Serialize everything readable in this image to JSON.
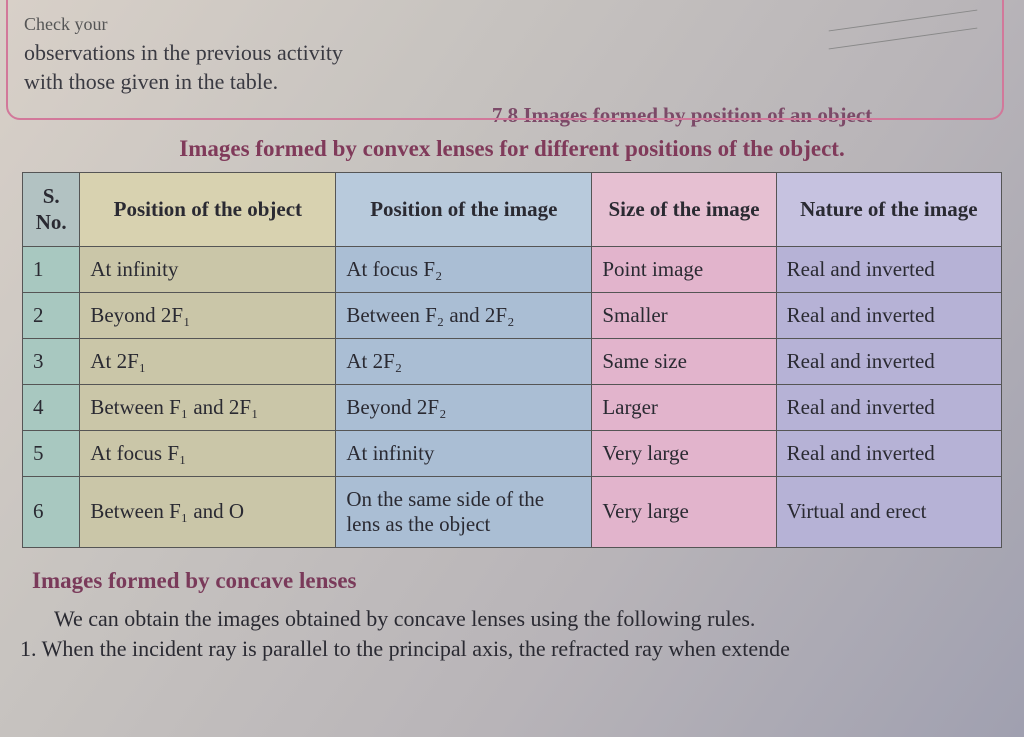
{
  "top_fragment": {
    "line0": "Check your",
    "line1": "observations in the previous activity",
    "line2": "with those given in the table."
  },
  "caption": "7.8 Images formed by position of an object",
  "section_title": "Images formed by convex lenses for different positions of the object.",
  "table": {
    "headers": {
      "sno": "S. No.",
      "objpos": "Position of the object",
      "imgpos": "Position of the image",
      "size": "Size of the image",
      "nature": "Nature of the image"
    },
    "rows": [
      {
        "sno": "1",
        "objpos": "At infinity",
        "imgpos": "At focus F₂",
        "size": "Point image",
        "nature": "Real and inverted"
      },
      {
        "sno": "2",
        "objpos": "Beyond 2F₁",
        "imgpos": "Between F₂ and 2F₂",
        "size": "Smaller",
        "nature": "Real and inverted"
      },
      {
        "sno": "3",
        "objpos": "At 2F₁",
        "imgpos": "At 2F₂",
        "size": "Same size",
        "nature": "Real and inverted"
      },
      {
        "sno": "4",
        "objpos": "Between F₁ and 2F₁",
        "imgpos": "Beyond 2F₂",
        "size": "Larger",
        "nature": "Real and inverted"
      },
      {
        "sno": "5",
        "objpos": "At focus F₁",
        "imgpos": "At infinity",
        "size": "Very large",
        "nature": "Real and inverted"
      },
      {
        "sno": "6",
        "objpos": "Between F₁ and O",
        "imgpos": "On the same side of the lens as the object",
        "size": "Very large",
        "nature": "Virtual and erect"
      }
    ],
    "colors": {
      "header": {
        "sno": "#b2c2c2",
        "objpos": "#d8d2b0",
        "imgpos": "#b8cadc",
        "size": "#e6c0d2",
        "nature": "#c6c2e0"
      },
      "body": {
        "sno": "#a8c8c0",
        "objpos": "#cac6a8",
        "imgpos": "#aabed4",
        "size": "#e2b4cc",
        "nature": "#b6b2d6"
      },
      "border": "#555555"
    },
    "fontsize": 21
  },
  "subheading": "Images formed by concave lenses",
  "paragraph1": "We can obtain the images obtained by concave lenses using the following rules.",
  "paragraph2": "1. When the incident ray is parallel to the principal axis, the refracted ray when extende",
  "style": {
    "accent_text_color": "#7a3a5a",
    "body_text_color": "#2a2a32",
    "pink_border_color": "#d2789a",
    "page_background_gradient": [
      "#d8d0c8",
      "#c8c4c0",
      "#b8b4b8",
      "#a0a0b0"
    ]
  }
}
